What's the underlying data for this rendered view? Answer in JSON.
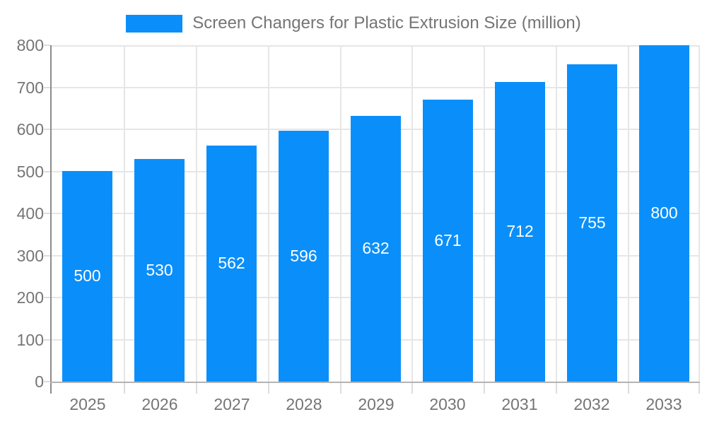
{
  "chart_data": {
    "type": "bar",
    "title": "Screen Changers for Plastic Extrusion Size (million)",
    "legend_label": "Screen Changers for Plastic Extrusion Size (million)",
    "legend_position": "top-center",
    "categories": [
      "2025",
      "2026",
      "2027",
      "2028",
      "2029",
      "2030",
      "2031",
      "2032",
      "2033"
    ],
    "values": [
      500,
      530,
      562,
      596,
      632,
      671,
      712,
      755,
      800
    ],
    "xlabel": "",
    "ylabel": "",
    "ylim": [
      0,
      800
    ],
    "ytick_step": 100,
    "ytick_labels": [
      "0",
      "100",
      "200",
      "300",
      "400",
      "500",
      "600",
      "700",
      "800"
    ],
    "grid": "on",
    "value_labels": "inside-center-white"
  },
  "colors": {
    "bar": "#0A8FFA",
    "grid": "#E6E6E6",
    "x_axis_line": "#B3B3B3",
    "y_axis_line": "#8C8C8C",
    "tick": "#DDDDDD",
    "text": "#757575",
    "value_label_text": "#FFFFFF"
  }
}
